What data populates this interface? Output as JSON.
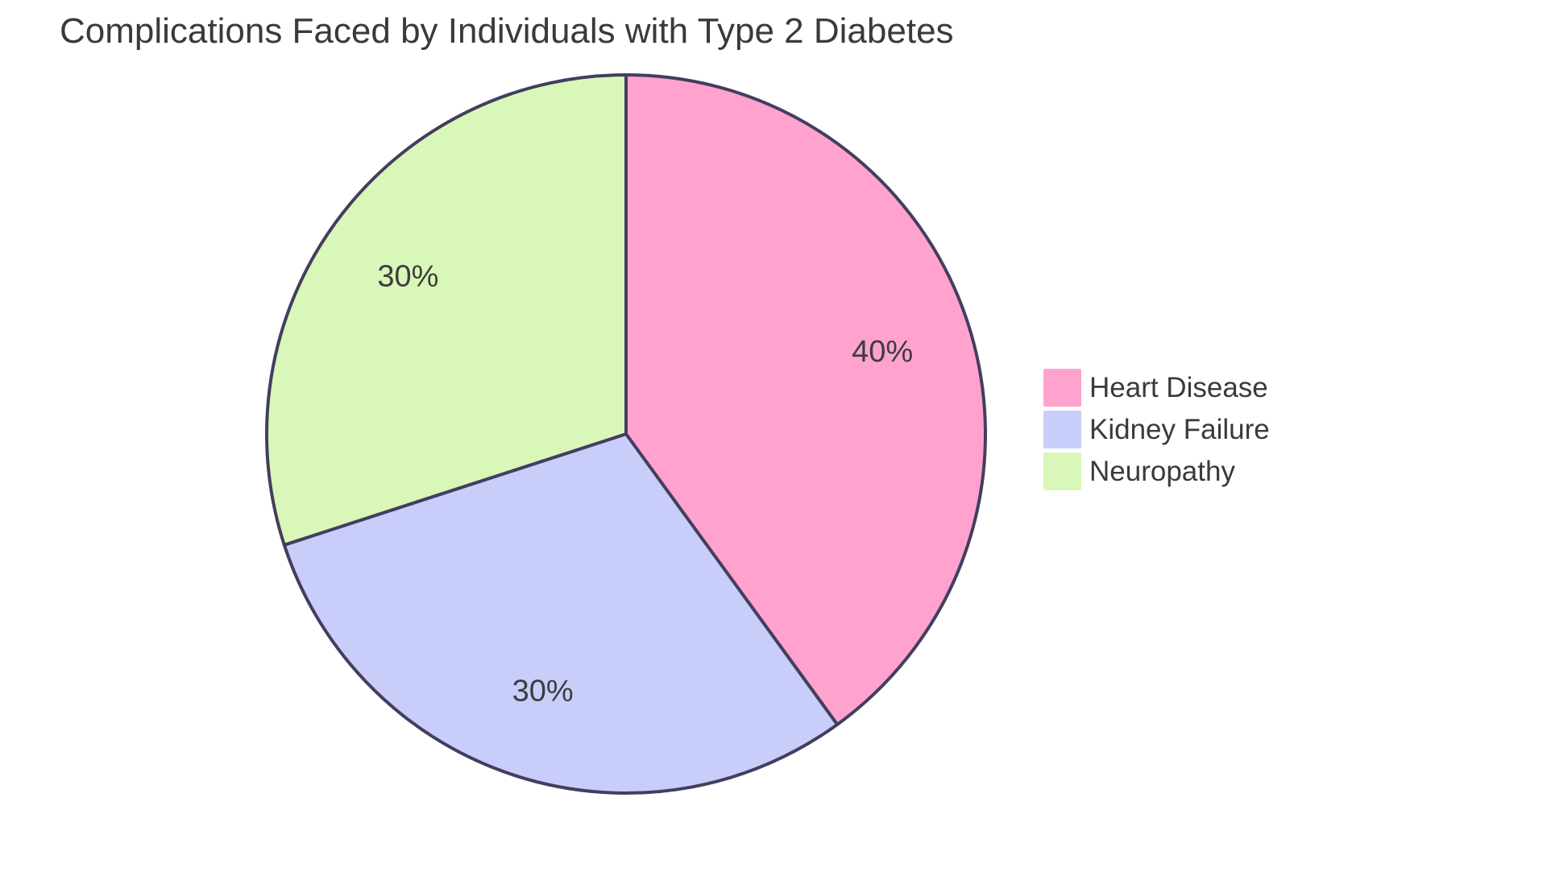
{
  "chart_data": {
    "type": "pie",
    "title": "Complications Faced by Individuals with Type 2 Diabetes",
    "categories": [
      "Heart Disease",
      "Kidney Failure",
      "Neuropathy"
    ],
    "values": [
      40,
      30,
      30
    ],
    "percent_labels": [
      "40%",
      "30%",
      "30%"
    ],
    "colors": [
      "#FFA3CE",
      "#C9CDFA",
      "#D9F7B8"
    ],
    "stroke_color": "#433E5F",
    "label_color": "#3D3D3D",
    "start_angle_deg": 90,
    "direction": "clockwise",
    "legend_position": "right",
    "grid": false
  },
  "legend": {
    "items": [
      {
        "label": "Heart Disease",
        "color": "#FFA3CE"
      },
      {
        "label": "Kidney Failure",
        "color": "#C9CDFA"
      },
      {
        "label": "Neuropathy",
        "color": "#D9F7B8"
      }
    ]
  }
}
